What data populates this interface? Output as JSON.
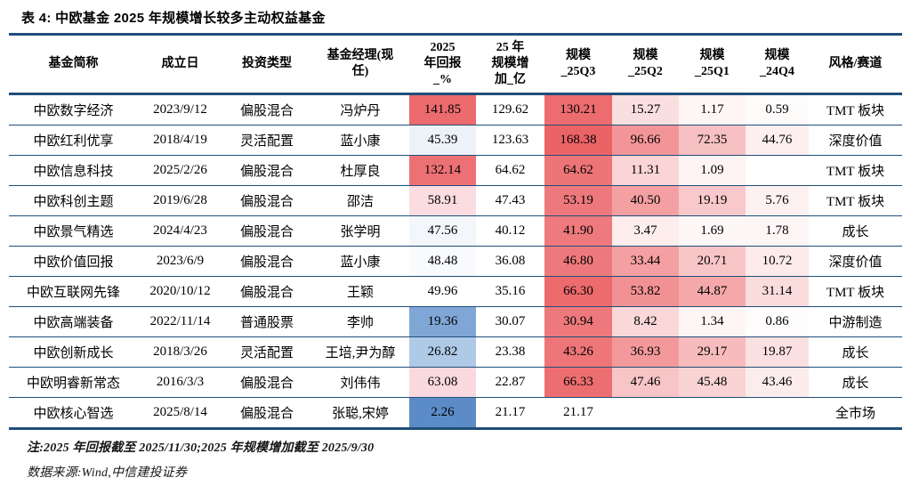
{
  "title": "表 4: 中欧基金 2025 年规模增长较多主动权益基金",
  "colors": {
    "border_navy": "#1F4E79",
    "heat_red_max": "#EC6366",
    "heat_blue_max": "#5C8CC7"
  },
  "table": {
    "columns": [
      "基金简称",
      "成立日",
      "投资类型",
      "基金经理(现\n任)",
      "2025\n年回报\n_%",
      "25 年\n规模增\n加_亿",
      "规模\n_25Q3",
      "规模\n_25Q2",
      "规模\n_25Q1",
      "规模\n_24Q4",
      "风格/赛道"
    ],
    "rows": [
      {
        "cells": [
          {
            "v": "中欧数字经济"
          },
          {
            "v": "2023/9/12"
          },
          {
            "v": "偏股混合"
          },
          {
            "v": "冯炉丹"
          },
          {
            "v": "141.85",
            "bg": "#EC6B6E"
          },
          {
            "v": "129.62"
          },
          {
            "v": "130.21",
            "bg": "#ED6C6F"
          },
          {
            "v": "15.27",
            "bg": "#FADFE0"
          },
          {
            "v": "1.17",
            "bg": "#FEF5F5"
          },
          {
            "v": "0.59",
            "bg": "#FEFBFB"
          },
          {
            "v": "TMT 板块"
          }
        ]
      },
      {
        "cells": [
          {
            "v": "中欧红利优享"
          },
          {
            "v": "2018/4/19"
          },
          {
            "v": "灵活配置"
          },
          {
            "v": "蓝小康"
          },
          {
            "v": "45.39",
            "bg": "#EDF2F9"
          },
          {
            "v": "123.63"
          },
          {
            "v": "168.38",
            "bg": "#EC6366"
          },
          {
            "v": "96.66",
            "bg": "#F39598"
          },
          {
            "v": "72.35",
            "bg": "#F7C0C2"
          },
          {
            "v": "44.76",
            "bg": "#FDEEEF"
          },
          {
            "v": "深度价值"
          }
        ]
      },
      {
        "cells": [
          {
            "v": "中欧信息科技"
          },
          {
            "v": "2025/2/26"
          },
          {
            "v": "偏股混合"
          },
          {
            "v": "杜厚良"
          },
          {
            "v": "132.14",
            "bg": "#ED7174"
          },
          {
            "v": "64.62"
          },
          {
            "v": "64.62",
            "bg": "#ED7578"
          },
          {
            "v": "11.31",
            "bg": "#FAD4D6"
          },
          {
            "v": "1.09",
            "bg": "#FEF4F4"
          },
          {
            "v": ""
          },
          {
            "v": "TMT 板块"
          }
        ]
      },
      {
        "cells": [
          {
            "v": "中欧科创主题"
          },
          {
            "v": "2019/6/28"
          },
          {
            "v": "偏股混合"
          },
          {
            "v": "邵洁"
          },
          {
            "v": "58.91",
            "bg": "#FBDCE0"
          },
          {
            "v": "47.43"
          },
          {
            "v": "53.19",
            "bg": "#EE797C"
          },
          {
            "v": "40.50",
            "bg": "#F4A0A2"
          },
          {
            "v": "19.19",
            "bg": "#F8C8CA"
          },
          {
            "v": "5.76",
            "bg": "#FEF1F1"
          },
          {
            "v": "TMT 板块"
          }
        ]
      },
      {
        "cells": [
          {
            "v": "中欧景气精选"
          },
          {
            "v": "2024/4/23"
          },
          {
            "v": "偏股混合"
          },
          {
            "v": "张学明"
          },
          {
            "v": "47.56",
            "bg": "#F3F7FB"
          },
          {
            "v": "40.12"
          },
          {
            "v": "41.90",
            "bg": "#EE7A7D"
          },
          {
            "v": "3.47",
            "bg": "#FDEDED"
          },
          {
            "v": "1.69",
            "bg": "#FEF7F7"
          },
          {
            "v": "1.78",
            "bg": "#FEF6F6"
          },
          {
            "v": "成长"
          }
        ]
      },
      {
        "cells": [
          {
            "v": "中欧价值回报"
          },
          {
            "v": "2023/6/9"
          },
          {
            "v": "偏股混合"
          },
          {
            "v": "蓝小康"
          },
          {
            "v": "48.48",
            "bg": "#F8FAFD"
          },
          {
            "v": "36.08"
          },
          {
            "v": "46.80",
            "bg": "#EE797C"
          },
          {
            "v": "33.44",
            "bg": "#F49FA1"
          },
          {
            "v": "20.71",
            "bg": "#F8C5C7"
          },
          {
            "v": "10.72",
            "bg": "#FDEAEA"
          },
          {
            "v": "深度价值"
          }
        ]
      },
      {
        "cells": [
          {
            "v": "中欧互联网先锋"
          },
          {
            "v": "2020/10/12"
          },
          {
            "v": "偏股混合"
          },
          {
            "v": "王颖"
          },
          {
            "v": "49.96",
            "bg": "#FFFFFF"
          },
          {
            "v": "35.16"
          },
          {
            "v": "66.30",
            "bg": "#ED6A6D"
          },
          {
            "v": "53.82",
            "bg": "#F29193"
          },
          {
            "v": "44.87",
            "bg": "#F5A8AA"
          },
          {
            "v": "31.14",
            "bg": "#FADCDD"
          },
          {
            "v": "TMT 板块"
          }
        ]
      },
      {
        "cells": [
          {
            "v": "中欧高端装备"
          },
          {
            "v": "2022/11/14"
          },
          {
            "v": "普通股票"
          },
          {
            "v": "李帅"
          },
          {
            "v": "19.36",
            "bg": "#7FA6D5"
          },
          {
            "v": "30.07"
          },
          {
            "v": "30.94",
            "bg": "#EE797C"
          },
          {
            "v": "8.42",
            "bg": "#FAD7D9"
          },
          {
            "v": "1.34",
            "bg": "#FEF5F5"
          },
          {
            "v": "0.86",
            "bg": "#FEFCFC"
          },
          {
            "v": "中游制造"
          }
        ]
      },
      {
        "cells": [
          {
            "v": "中欧创新成长"
          },
          {
            "v": "2018/3/26"
          },
          {
            "v": "灵活配置"
          },
          {
            "v": "王培,尹为醇"
          },
          {
            "v": "26.82",
            "bg": "#AECAE7"
          },
          {
            "v": "23.38"
          },
          {
            "v": "43.26",
            "bg": "#EE7578"
          },
          {
            "v": "36.93",
            "bg": "#F3999B"
          },
          {
            "v": "29.17",
            "bg": "#F7BBBD"
          },
          {
            "v": "19.87",
            "bg": "#FBE0E1"
          },
          {
            "v": "成长"
          }
        ]
      },
      {
        "cells": [
          {
            "v": "中欧明睿新常态"
          },
          {
            "v": "2016/3/3"
          },
          {
            "v": "偏股混合"
          },
          {
            "v": "刘伟伟"
          },
          {
            "v": "63.08",
            "bg": "#FAD9DE"
          },
          {
            "v": "22.87"
          },
          {
            "v": "66.33",
            "bg": "#ED6E71"
          },
          {
            "v": "47.46",
            "bg": "#F8C5C7"
          },
          {
            "v": "45.48",
            "bg": "#FAD3D4"
          },
          {
            "v": "43.46",
            "bg": "#FDECEC"
          },
          {
            "v": "成长"
          }
        ]
      },
      {
        "cells": [
          {
            "v": "中欧核心智选"
          },
          {
            "v": "2025/8/14"
          },
          {
            "v": "偏股混合"
          },
          {
            "v": "张聪,宋婷"
          },
          {
            "v": "2.26",
            "bg": "#5C8CC7"
          },
          {
            "v": "21.17"
          },
          {
            "v": "21.17"
          },
          {
            "v": ""
          },
          {
            "v": ""
          },
          {
            "v": ""
          },
          {
            "v": "全市场"
          }
        ]
      }
    ]
  },
  "notes": {
    "line1": "注:2025 年回报截至 2025/11/30;2025 年规模增加截至 2025/9/30",
    "line2": "数据来源:Wind,中信建投证券"
  }
}
